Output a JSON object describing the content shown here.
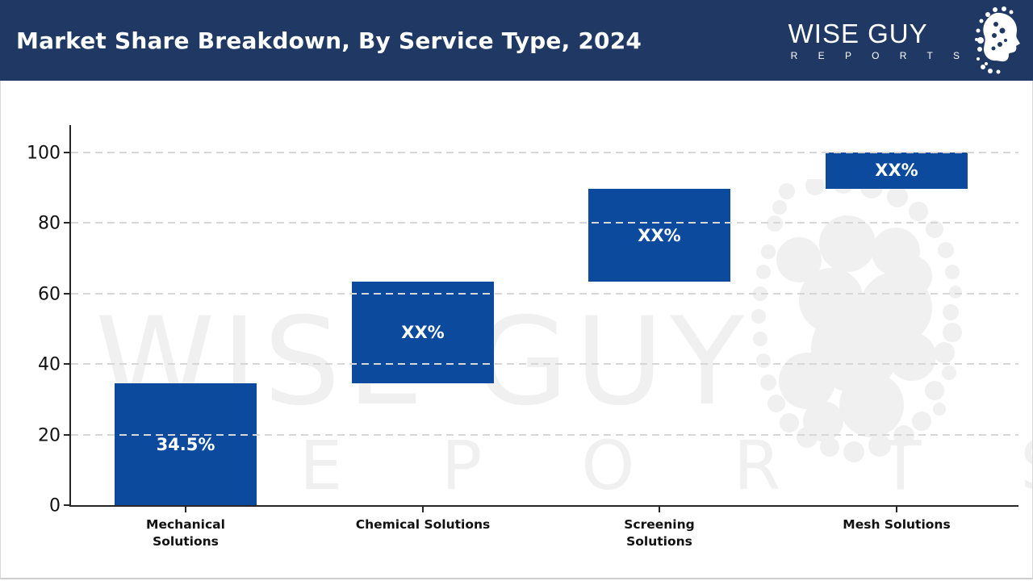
{
  "header": {
    "title": "Market Share Breakdown, By Service Type, 2024",
    "background": "#1f3864",
    "logo": {
      "line1": "WISE GUY",
      "line2": "R E P O R T S"
    }
  },
  "watermark": {
    "line1": "WISE GUY",
    "line2": "R E P O R T S"
  },
  "chart_data": {
    "type": "bar",
    "subtype": "floating-waterfall",
    "title": "Market Share Breakdown, By Service Type, 2024",
    "categories": [
      "Mechanical Solutions",
      "Chemical Solutions",
      "Screening Solutions",
      "Mesh Solutions"
    ],
    "category_label_lines": [
      [
        "Mechanical",
        "Solutions"
      ],
      [
        "Chemical Solutions"
      ],
      [
        "Screening",
        "Solutions"
      ],
      [
        "Mesh Solutions"
      ]
    ],
    "bars": [
      {
        "category": "Mechanical Solutions",
        "start": 0,
        "end": 34.5,
        "label": "34.5%"
      },
      {
        "category": "Chemical Solutions",
        "start": 34.5,
        "end": 63.3,
        "label": "XX%"
      },
      {
        "category": "Screening Solutions",
        "start": 63.3,
        "end": 89.5,
        "label": "XX%"
      },
      {
        "category": "Mesh Solutions",
        "start": 89.5,
        "end": 100,
        "label": "XX%"
      }
    ],
    "ylim": [
      0,
      100
    ],
    "yticks": [
      0,
      20,
      40,
      60,
      80,
      100
    ],
    "bar_color": "#0c4a9e",
    "grid": {
      "horizontal": true,
      "style": "dashed",
      "color": "#d7d7d7",
      "above_bars": true
    },
    "legend": null
  }
}
